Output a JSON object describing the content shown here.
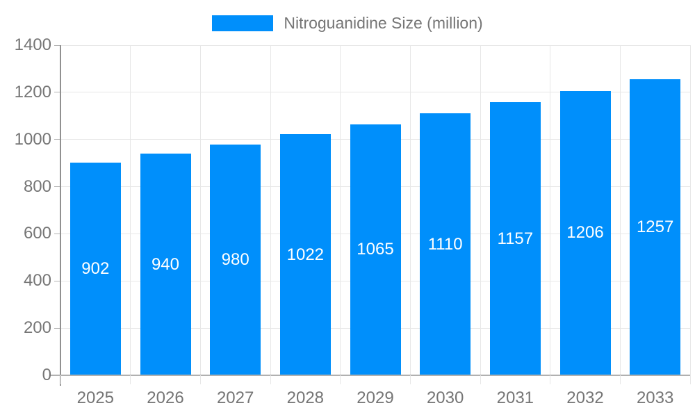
{
  "legend": {
    "label": "Nitroguanidine Size (million)"
  },
  "chart_data": {
    "type": "bar",
    "title": "",
    "categories": [
      "2025",
      "2026",
      "2027",
      "2028",
      "2029",
      "2030",
      "2031",
      "2032",
      "2033"
    ],
    "series": [
      {
        "name": "Nitroguanidine Size (million)",
        "values": [
          902,
          940,
          980,
          1022,
          1065,
          1110,
          1157,
          1206,
          1257
        ]
      }
    ],
    "xlabel": "",
    "ylabel": "",
    "ylim": [
      0,
      1400
    ],
    "yticks": [
      0,
      200,
      400,
      600,
      800,
      1000,
      1200,
      1400
    ],
    "grid": "both",
    "legend_position": "top",
    "value_labels": "inside-center"
  },
  "colors": {
    "bar": "#008FFB",
    "grid": "#e7e7e7",
    "axis_y_line": "#919191",
    "axis_x_line": "#b0b0b0",
    "tick_mark": "#b3b3b3",
    "tick_label": "#757575",
    "value_label": "#ffffff",
    "background": "#ffffff"
  }
}
